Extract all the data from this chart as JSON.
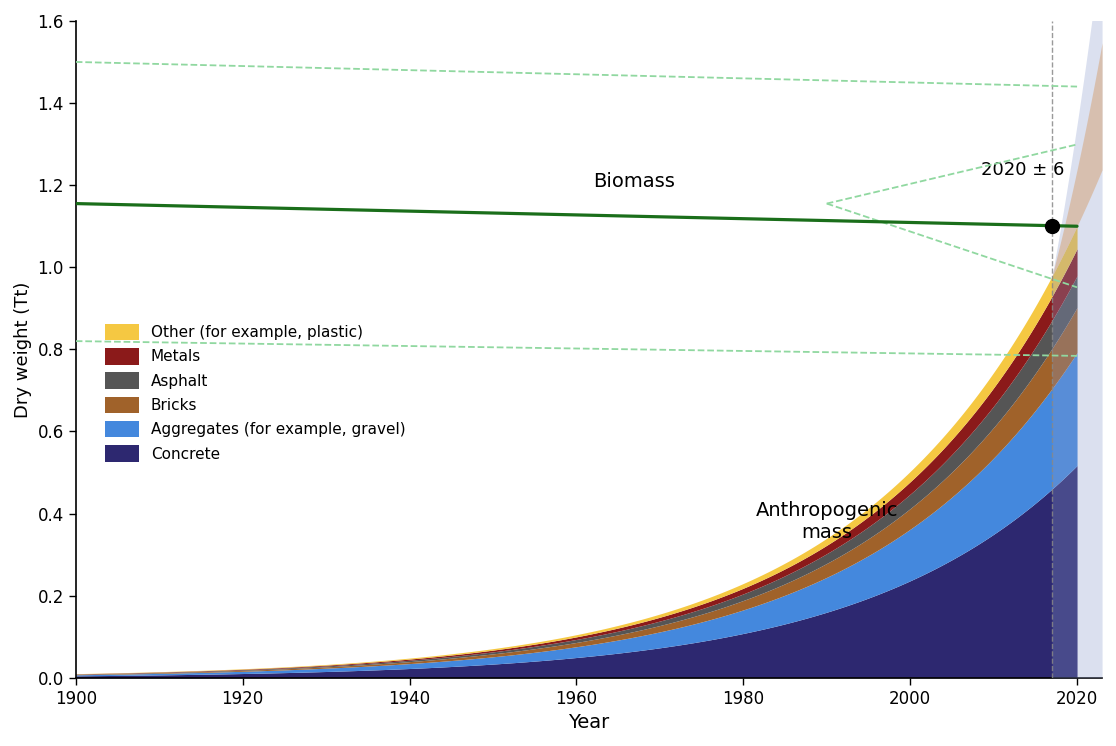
{
  "xlabel": "Year",
  "ylabel": "Dry weight (Tt)",
  "xlim": [
    1900,
    2023
  ],
  "ylim": [
    0,
    1.6
  ],
  "yticks": [
    0,
    0.2,
    0.4,
    0.6,
    0.8,
    1.0,
    1.2,
    1.4,
    1.6
  ],
  "xticks": [
    1900,
    1920,
    1940,
    1960,
    1980,
    2000,
    2020
  ],
  "biomass_color": "#1a6e1a",
  "biomass_band_color": "#90d8a0",
  "biomass_label": "Biomass",
  "annotation_label": "2020 ± 6",
  "vline_year": 2017,
  "legend_items": [
    {
      "label": "Other (for example, plastic)",
      "color": "#f5c842"
    },
    {
      "label": "Metals",
      "color": "#8b1a1a"
    },
    {
      "label": "Asphalt",
      "color": "#555555"
    },
    {
      "label": "Bricks",
      "color": "#a0622a"
    },
    {
      "label": "Aggregates (for example, gravel)",
      "color": "#4488dd"
    },
    {
      "label": "Concrete",
      "color": "#2d2870"
    }
  ],
  "anthro_label": "Anthropogenic\nmass",
  "background_color": "#ffffff",
  "projection_color": "#8899cc",
  "projection_alpha": 0.3
}
